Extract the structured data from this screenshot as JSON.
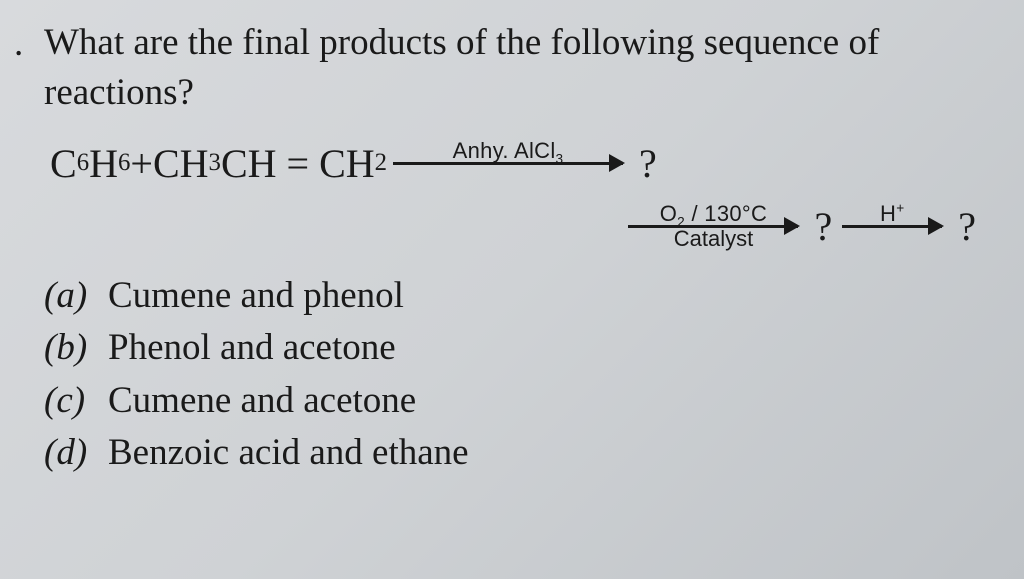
{
  "question": {
    "bullet": ".",
    "text": "What are the final products of the following sequence of reactions?"
  },
  "reaction": {
    "r1": "C",
    "r1s": "6",
    "r2": "H",
    "r2s": "6",
    "plus": " + ",
    "r3": "CH",
    "r3s": "3",
    "r4": "CH = CH",
    "r4s": "2",
    "arrow1_top_a": "Anhy. AlCl",
    "arrow1_top_a_s": "3",
    "q1": "?",
    "arrow2_top_a": "O",
    "arrow2_top_a_s": "2",
    "arrow2_top_b": " / 130°C",
    "arrow2_bottom": "Catalyst",
    "q2": "?",
    "arrow3_top": "H",
    "arrow3_top_sup": "+",
    "q3": "?"
  },
  "options": {
    "a": {
      "letter": "(a)",
      "text": "Cumene and phenol"
    },
    "b": {
      "letter": "(b)",
      "text": "Phenol and acetone"
    },
    "c": {
      "letter": "(c)",
      "text": "Cumene and acetone"
    },
    "d": {
      "letter": "(d)",
      "text": "Benzoic acid and ethane"
    }
  }
}
